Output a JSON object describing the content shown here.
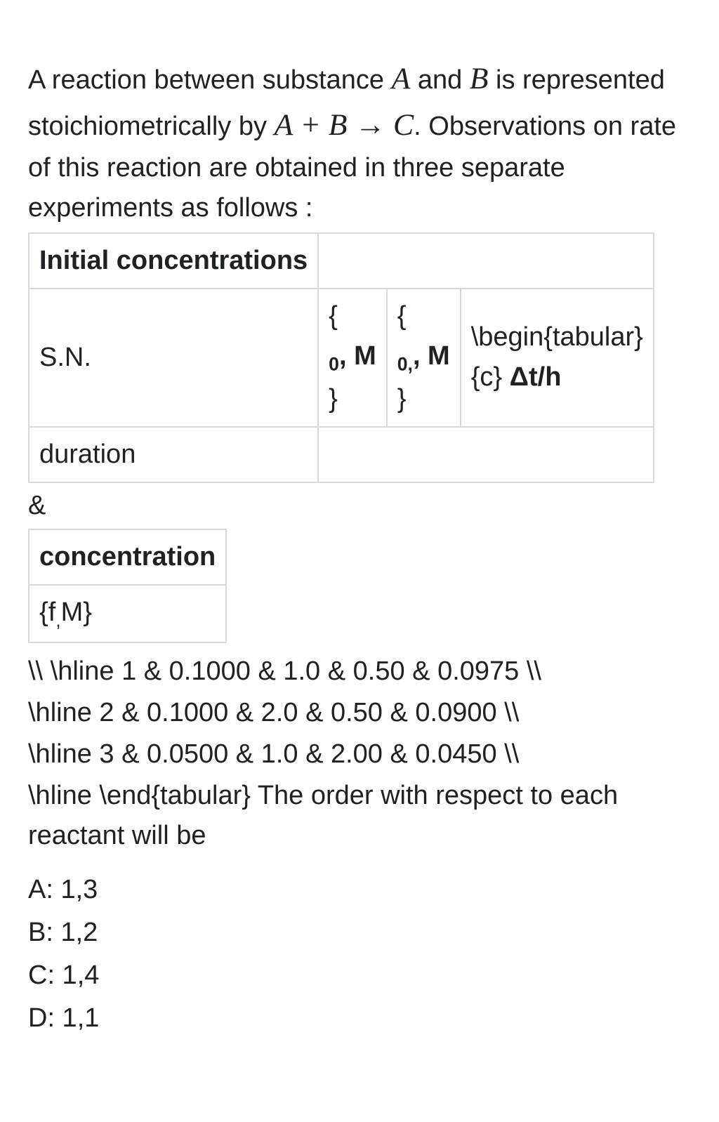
{
  "intro": {
    "part1": "A reaction between substance ",
    "A": "A",
    "and": " and ",
    "B": "B",
    "part2": " is represented stoichiometrically by ",
    "eq_lhs": "A + B",
    "arrow": " → ",
    "C": "C",
    "part3": ". Observations on rate of this reaction are obtained in three separate experiments as follows :"
  },
  "table1": {
    "h1": "Initial concentrations",
    "r2c1": "S.N.",
    "r2c2_open": "{",
    "r2c2_sub": "0",
    "r2c2_mid": ", M",
    "r2c2_close": "}",
    "r2c3_open": "{",
    "r2c3_sub": "0,",
    "r2c3_mid": ", M",
    "r2c3_close": "}",
    "r2c4_a": "\\begin{tabular}",
    "r2c4_b": "{c} ",
    "r2c4_dt": "Δt/h",
    "r3c1": "duration"
  },
  "amp": "&",
  "table2": {
    "h": "concentration",
    "r2": "{f",
    "r2_mid": ",",
    "r2_M": "M",
    "r2_close": "}"
  },
  "latex": {
    "l1": "\\\\ \\hline 1 & 0.1000 & 1.0 & 0.50 & 0.0975 \\\\",
    "l2": "\\hline 2 & 0.1000 & 2.0 & 0.50 & 0.0900 \\\\",
    "l3": "\\hline 3 & 0.0500 & 1.0 & 2.00 & 0.0450 \\\\",
    "l4_a": "\\hline \\end{tabular} ",
    "l4_b": "The order with respect to each reactant will be"
  },
  "options": {
    "a": "A:  1,3",
    "b": "B:  1,2",
    "c": "C:  1,4",
    "d": "D:  1,1"
  }
}
